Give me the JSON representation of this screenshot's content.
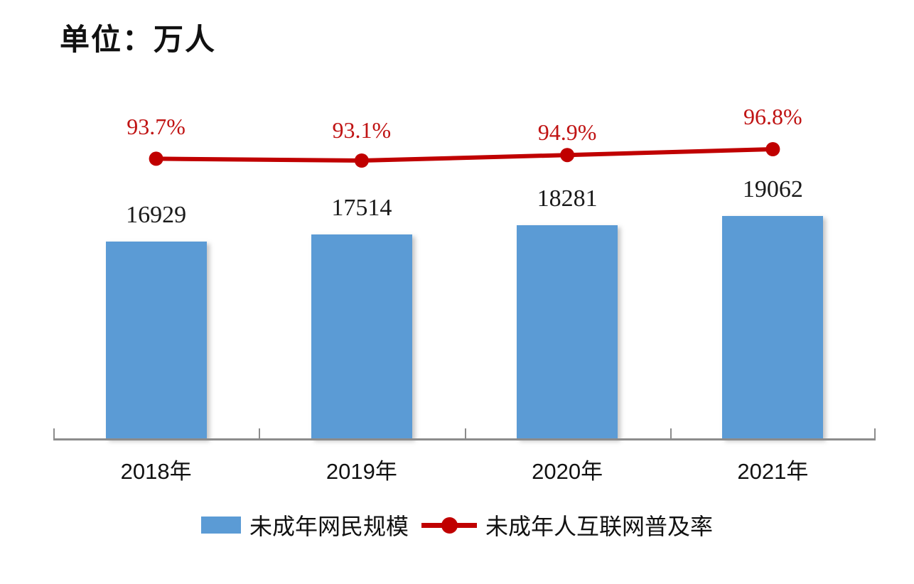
{
  "unit_label": "单位：万人",
  "chart_data": {
    "type": "bar",
    "subtype": "combo-bar-line",
    "title": "单位：万人",
    "categories": [
      "2018年",
      "2019年",
      "2020年",
      "2021年"
    ],
    "series": [
      {
        "name": "未成年网民规模",
        "type": "bar",
        "unit": "万人",
        "values": [
          16929,
          17514,
          18281,
          19062
        ],
        "color": "#5B9BD5"
      },
      {
        "name": "未成年人互联网普及率",
        "type": "line",
        "unit": "%",
        "values": [
          93.7,
          93.1,
          94.9,
          96.8
        ],
        "labels": [
          "93.7%",
          "93.1%",
          "94.9%",
          "96.8%"
        ],
        "color": "#C00000"
      }
    ],
    "xlabel": "",
    "ylabel": "",
    "ylim_bar": [
      0,
      20000
    ],
    "grid": false,
    "legend_position": "bottom",
    "axis_color": "#8C8C8C",
    "bar_value_label_color": "#1A1A1A",
    "line_label_color": "#C01414"
  },
  "legend": {
    "items": [
      {
        "label": "未成年网民规模",
        "marker": "bar-swatch",
        "color": "#5B9BD5"
      },
      {
        "label": "未成年人互联网普及率",
        "marker": "line-dot-swatch",
        "color": "#C00000"
      }
    ]
  }
}
